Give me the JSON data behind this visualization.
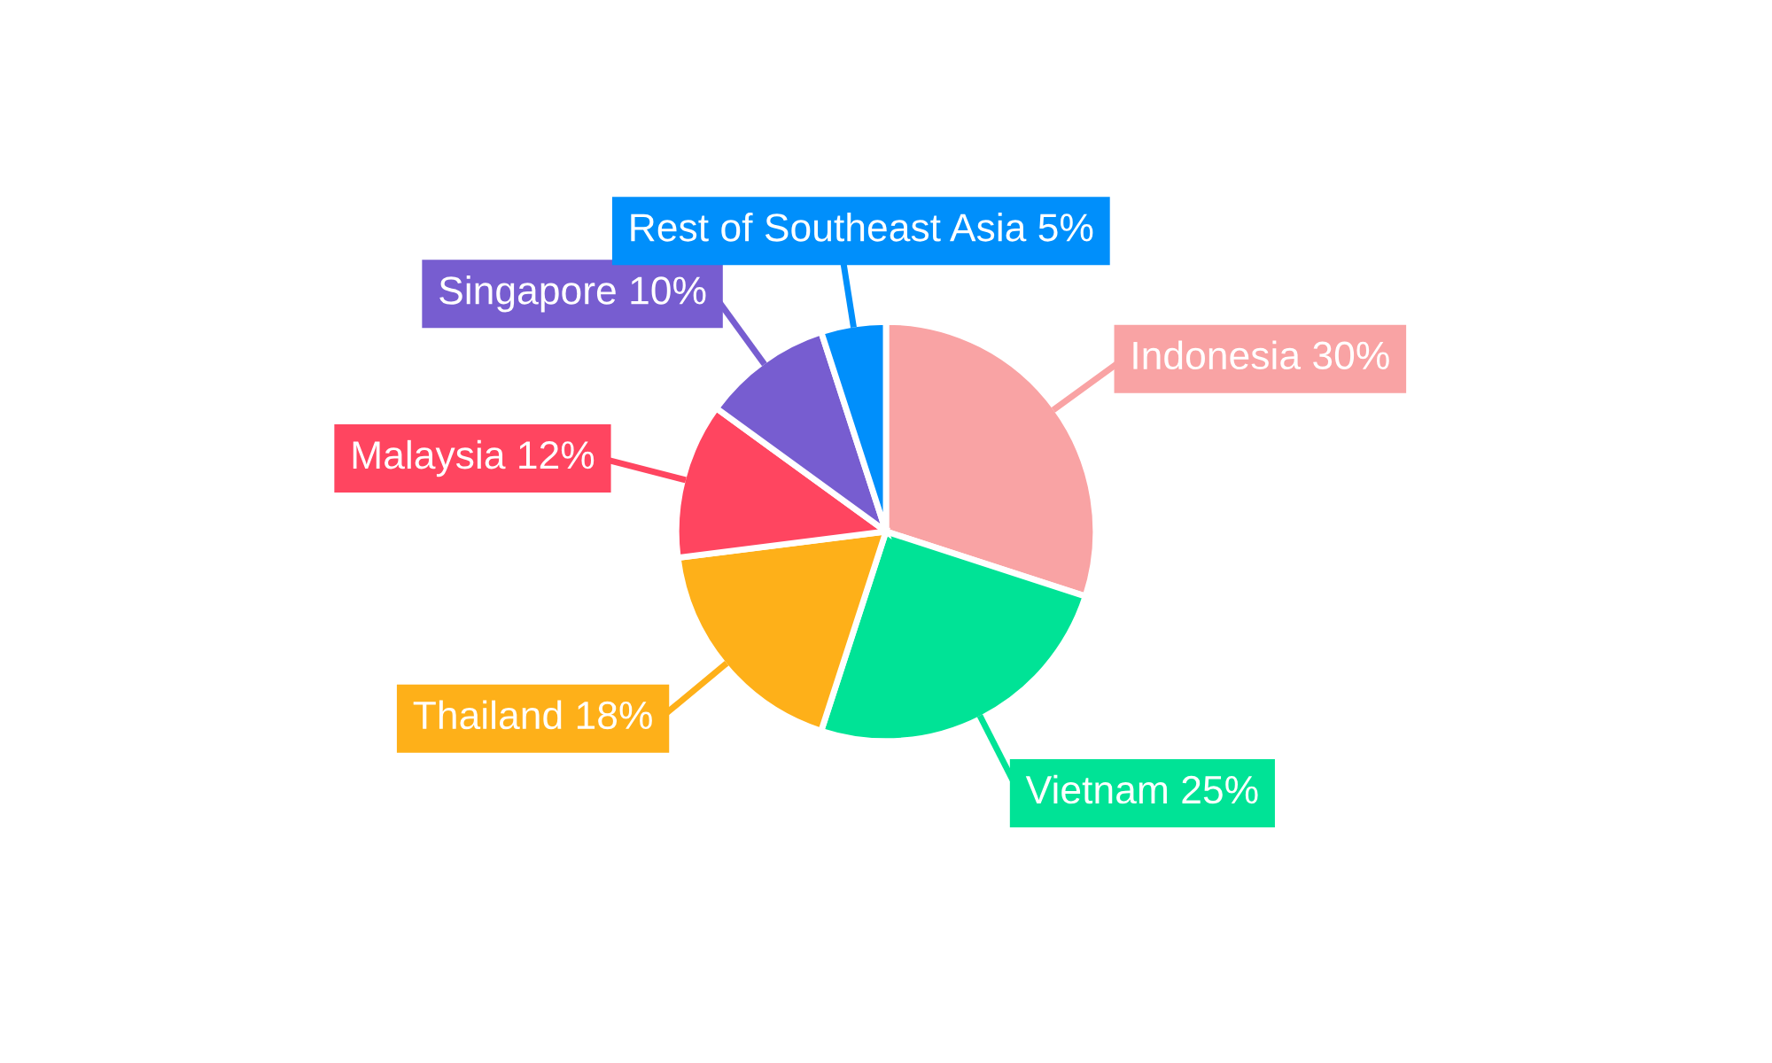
{
  "chart_data": {
    "type": "pie",
    "categories": [
      "Indonesia",
      "Vietnam",
      "Thailand",
      "Malaysia",
      "Singapore",
      "Rest of Southeast Asia"
    ],
    "values": [
      30,
      25,
      18,
      12,
      10,
      5
    ],
    "value_labels": [
      "30%",
      "25%",
      "18%",
      "12%",
      "10%",
      "5%"
    ],
    "colors": [
      "#f9a3a4",
      "#00e396",
      "#feb019",
      "#ff4560",
      "#775dd0",
      "#008ffb"
    ],
    "legend": false
  }
}
